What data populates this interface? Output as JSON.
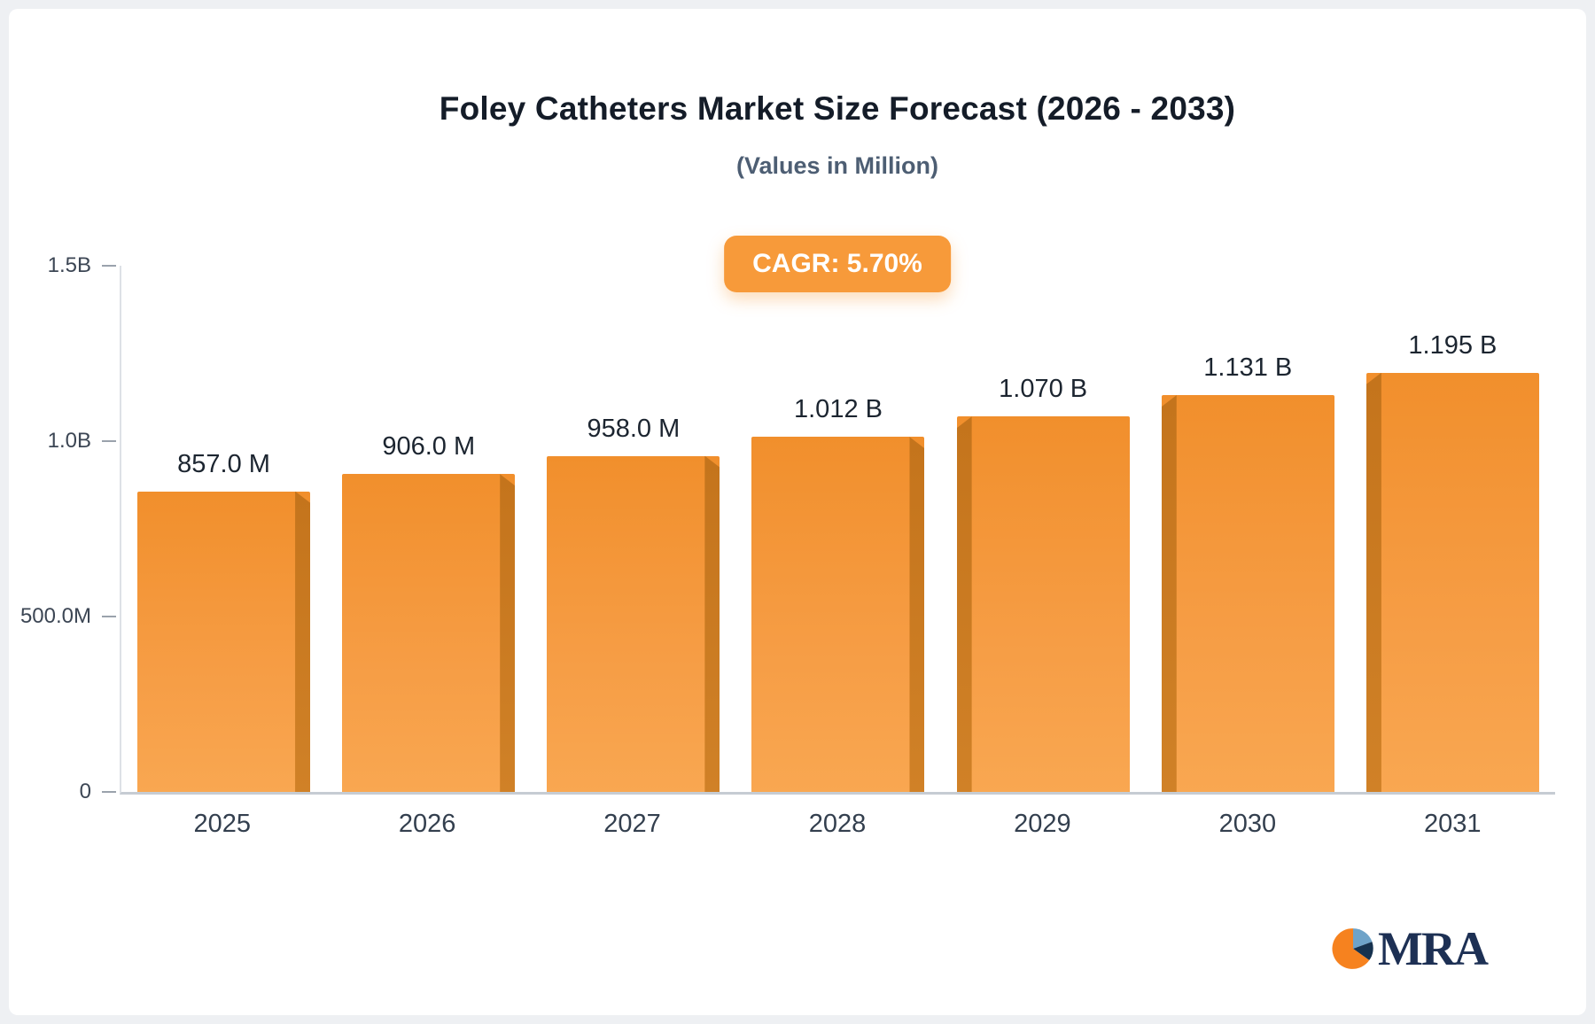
{
  "header": {
    "title": "Foley Catheters Market Size Forecast (2026 - 2033)",
    "subtitle": "(Values in Million)"
  },
  "chart_data": {
    "type": "bar",
    "title": "Foley Catheters Market Size Forecast (2026 - 2033)",
    "subtitle": "(Values in Million)",
    "annotation": "CAGR: 5.70%",
    "categories": [
      "2025",
      "2026",
      "2027",
      "2028",
      "2029",
      "2030",
      "2031"
    ],
    "values": [
      857,
      906,
      958,
      1012,
      1070,
      1131,
      1195
    ],
    "value_labels": [
      "857.0 M",
      "906.0 M",
      "958.0 M",
      "1.012 B",
      "1.070 B",
      "1.131 B",
      "1.195 B"
    ],
    "y_ticks": [
      {
        "label": "1.5B",
        "value": 1500
      },
      {
        "label": "1.0B",
        "value": 1000
      },
      {
        "label": "500.0M",
        "value": 500
      },
      {
        "label": "0",
        "value": 0
      }
    ],
    "ylim": [
      0,
      1500
    ],
    "xlabel": "",
    "ylabel": "",
    "grid": "off",
    "legend": "none",
    "bar_color": "#f79a3a",
    "bar_side_color": "#c97a20"
  },
  "footer": {
    "logo_text": "MRA"
  }
}
